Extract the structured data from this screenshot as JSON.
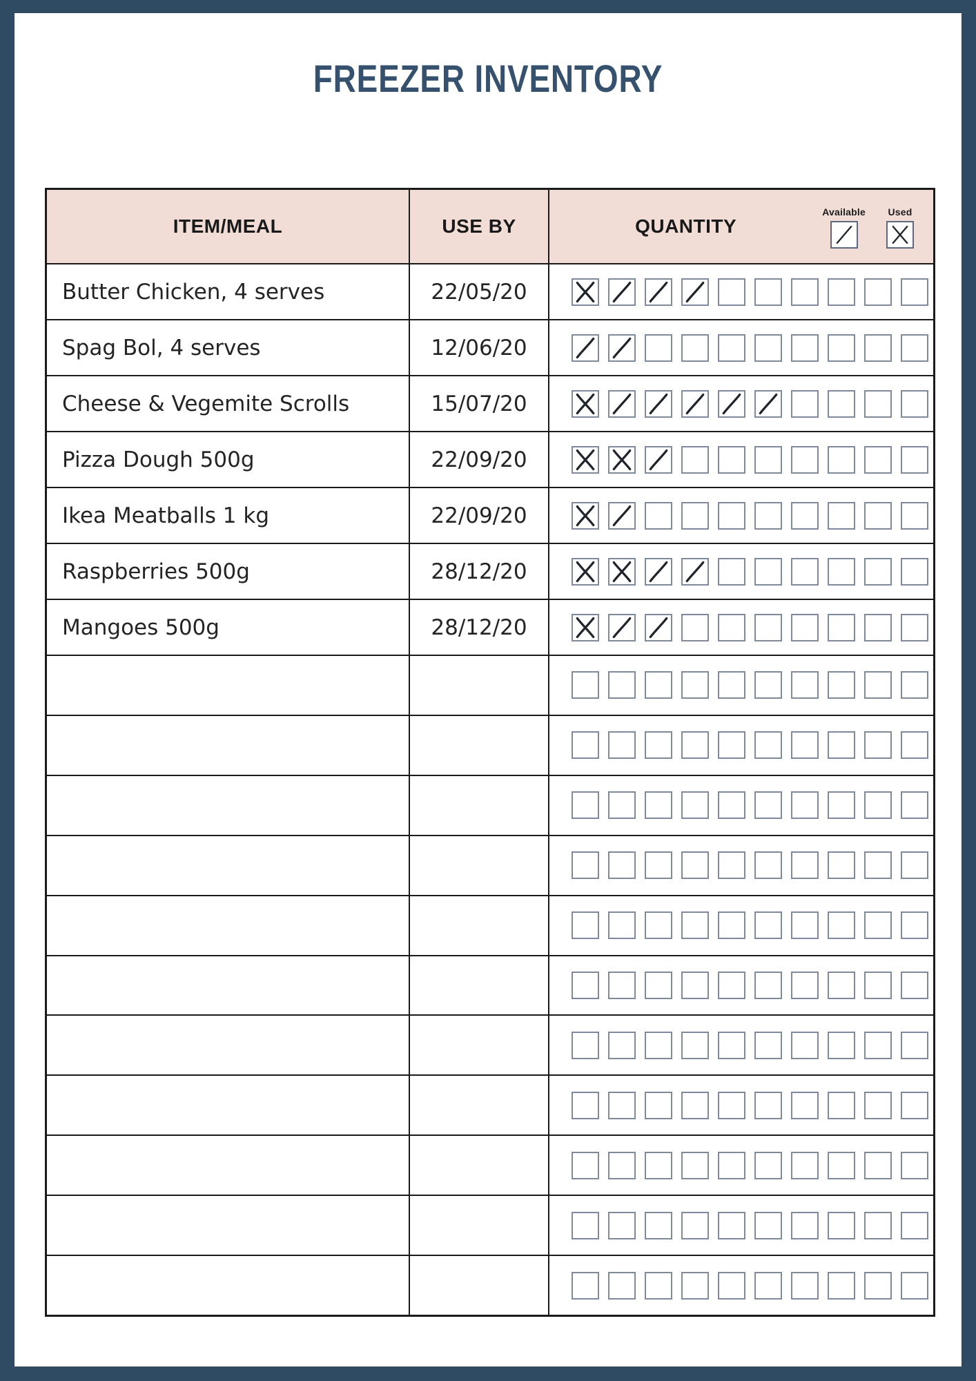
{
  "page": {
    "title": "FREEZER INVENTORY"
  },
  "colors": {
    "frame": "#2F4A63",
    "title": "#35516D",
    "header_bg": "#F1DDD6",
    "table_border": "#1A1A1A",
    "checkbox_border": "#7E899C",
    "legend_box_border": "#5D6880",
    "mark": "#20242B"
  },
  "table": {
    "columns": [
      {
        "label": "ITEM/MEAL"
      },
      {
        "label": "USE BY"
      },
      {
        "label": "QUANTITY"
      }
    ],
    "legend": [
      {
        "label": "Available",
        "mark": "/"
      },
      {
        "label": "Used",
        "mark": "x"
      }
    ],
    "boxes_per_row": 10,
    "rows": [
      {
        "item": "Butter Chicken, 4 serves",
        "use_by": "22/05/20",
        "marks": [
          "x",
          "/",
          "/",
          "/",
          "",
          "",
          "",
          "",
          "",
          ""
        ]
      },
      {
        "item": "Spag Bol, 4 serves",
        "use_by": "12/06/20",
        "marks": [
          "/",
          "/",
          "",
          "",
          "",
          "",
          "",
          "",
          "",
          ""
        ]
      },
      {
        "item": "Cheese & Vegemite Scrolls",
        "use_by": "15/07/20",
        "marks": [
          "x",
          "/",
          "/",
          "/",
          "/",
          "/",
          "",
          "",
          "",
          ""
        ]
      },
      {
        "item": "Pizza Dough 500g",
        "use_by": "22/09/20",
        "marks": [
          "x",
          "x",
          "/",
          "",
          "",
          "",
          "",
          "",
          "",
          ""
        ]
      },
      {
        "item": "Ikea Meatballs 1 kg",
        "use_by": "22/09/20",
        "marks": [
          "x",
          "/",
          "",
          "",
          "",
          "",
          "",
          "",
          "",
          ""
        ]
      },
      {
        "item": "Raspberries 500g",
        "use_by": "28/12/20",
        "marks": [
          "x",
          "x",
          "/",
          "/",
          "",
          "",
          "",
          "",
          "",
          ""
        ]
      },
      {
        "item": "Mangoes 500g",
        "use_by": "28/12/20",
        "marks": [
          "x",
          "/",
          "/",
          "",
          "",
          "",
          "",
          "",
          "",
          ""
        ]
      },
      {
        "item": "",
        "use_by": "",
        "marks": [
          "",
          "",
          "",
          "",
          "",
          "",
          "",
          "",
          "",
          ""
        ]
      },
      {
        "item": "",
        "use_by": "",
        "marks": [
          "",
          "",
          "",
          "",
          "",
          "",
          "",
          "",
          "",
          ""
        ]
      },
      {
        "item": "",
        "use_by": "",
        "marks": [
          "",
          "",
          "",
          "",
          "",
          "",
          "",
          "",
          "",
          ""
        ]
      },
      {
        "item": "",
        "use_by": "",
        "marks": [
          "",
          "",
          "",
          "",
          "",
          "",
          "",
          "",
          "",
          ""
        ]
      },
      {
        "item": "",
        "use_by": "",
        "marks": [
          "",
          "",
          "",
          "",
          "",
          "",
          "",
          "",
          "",
          ""
        ]
      },
      {
        "item": "",
        "use_by": "",
        "marks": [
          "",
          "",
          "",
          "",
          "",
          "",
          "",
          "",
          "",
          ""
        ]
      },
      {
        "item": "",
        "use_by": "",
        "marks": [
          "",
          "",
          "",
          "",
          "",
          "",
          "",
          "",
          "",
          ""
        ]
      },
      {
        "item": "",
        "use_by": "",
        "marks": [
          "",
          "",
          "",
          "",
          "",
          "",
          "",
          "",
          "",
          ""
        ]
      },
      {
        "item": "",
        "use_by": "",
        "marks": [
          "",
          "",
          "",
          "",
          "",
          "",
          "",
          "",
          "",
          ""
        ]
      },
      {
        "item": "",
        "use_by": "",
        "marks": [
          "",
          "",
          "",
          "",
          "",
          "",
          "",
          "",
          "",
          ""
        ]
      },
      {
        "item": "",
        "use_by": "",
        "marks": [
          "",
          "",
          "",
          "",
          "",
          "",
          "",
          "",
          "",
          ""
        ]
      }
    ]
  }
}
